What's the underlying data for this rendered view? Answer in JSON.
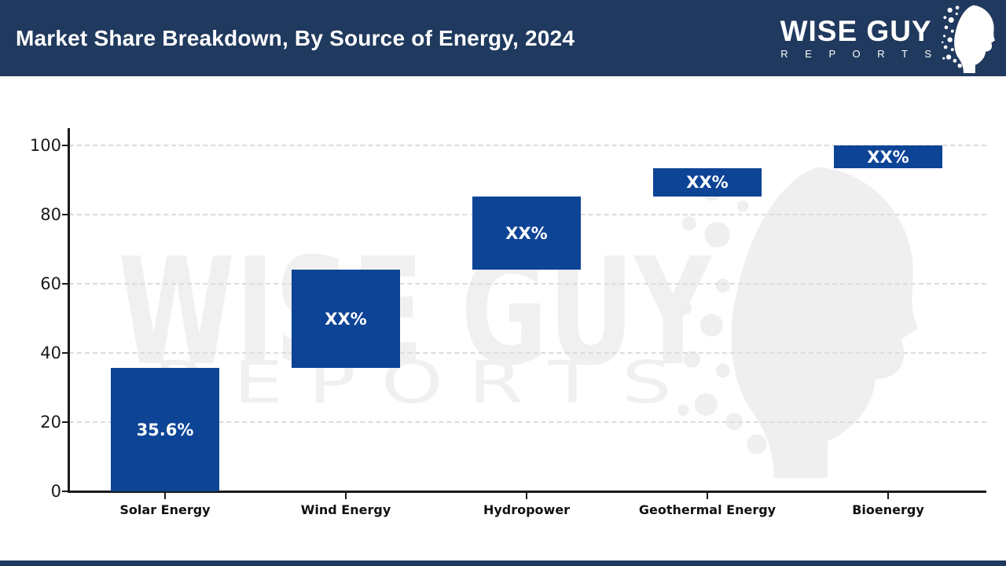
{
  "header": {
    "title": "Market Share Breakdown, By Source of Energy, 2024",
    "logo_line1": "WISE GUY",
    "logo_line2": "R E P O R T S",
    "bg_color": "#20395e",
    "text_color": "#ffffff"
  },
  "watermark": {
    "line1": "WISE GUY",
    "line2": "R E P O R T S",
    "color": "#f0f0f0"
  },
  "chart_data": {
    "type": "bar",
    "subtype": "waterfall",
    "title": "Market Share Breakdown, By Source of Energy, 2024",
    "categories": [
      "Solar Energy",
      "Wind Energy",
      "Hydropower",
      "Geothermal Energy",
      "Bioenergy"
    ],
    "segments": [
      {
        "category": "Solar Energy",
        "start": 0,
        "end": 35.6,
        "label": "35.6%"
      },
      {
        "category": "Wind Energy",
        "start": 35.6,
        "end": 64.0,
        "label": "XX%"
      },
      {
        "category": "Hydropower",
        "start": 64.0,
        "end": 85.2,
        "label": "XX%"
      },
      {
        "category": "Geothermal Energy",
        "start": 85.2,
        "end": 93.4,
        "label": "XX%"
      },
      {
        "category": "Bioenergy",
        "start": 93.4,
        "end": 100,
        "label": "XX%"
      }
    ],
    "y_ticks": [
      0,
      20,
      40,
      60,
      80,
      100
    ],
    "ylim": [
      0,
      104
    ],
    "xlabel": "",
    "ylabel": "",
    "grid": true,
    "legend": "none",
    "bar_color": "#0d4496",
    "bar_label_color": "#ffffff",
    "gridline_color": "#dcdcdc",
    "axis_color": "#1a1a1a"
  }
}
